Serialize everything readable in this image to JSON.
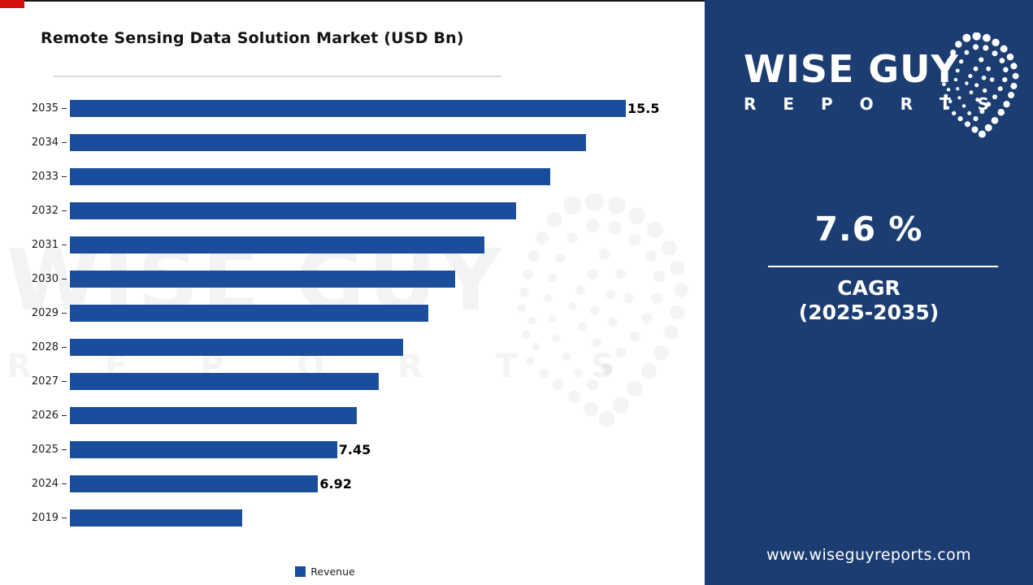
{
  "chart_data": {
    "type": "bar",
    "orientation": "horizontal",
    "title": "Remote Sensing Data Solution Market (USD Bn)",
    "series_name": "Revenue",
    "categories": [
      "2035",
      "2034",
      "2033",
      "2032",
      "2031",
      "2030",
      "2029",
      "2028",
      "2027",
      "2026",
      "2025",
      "2024",
      "2019"
    ],
    "values": [
      15.5,
      14.4,
      13.4,
      12.45,
      11.55,
      10.75,
      10.0,
      9.3,
      8.6,
      8.0,
      7.45,
      6.92,
      4.8
    ],
    "value_labels": [
      "15.5",
      "",
      "",
      "",
      "",
      "",
      "",
      "",
      "",
      "",
      "7.45",
      "6.92",
      ""
    ],
    "xlim": [
      0,
      15.5
    ],
    "grid": false,
    "legend_position": "bottom-center",
    "bar_color": "#1a4d9c"
  },
  "brand": {
    "logo_line1": "WISE GUY",
    "logo_line2": "R E P O R T S",
    "cagr_value": "7.6 %",
    "cagr_label": "CAGR",
    "cagr_range": "(2025-2035)",
    "website": "www.wiseguyreports.com",
    "panel_color": "#1b3d72"
  },
  "watermark": {
    "line1": "WISE GUY",
    "line2": "R E P O R T S"
  },
  "icons": {
    "head_profile": "dotted-head-profile-icon"
  }
}
